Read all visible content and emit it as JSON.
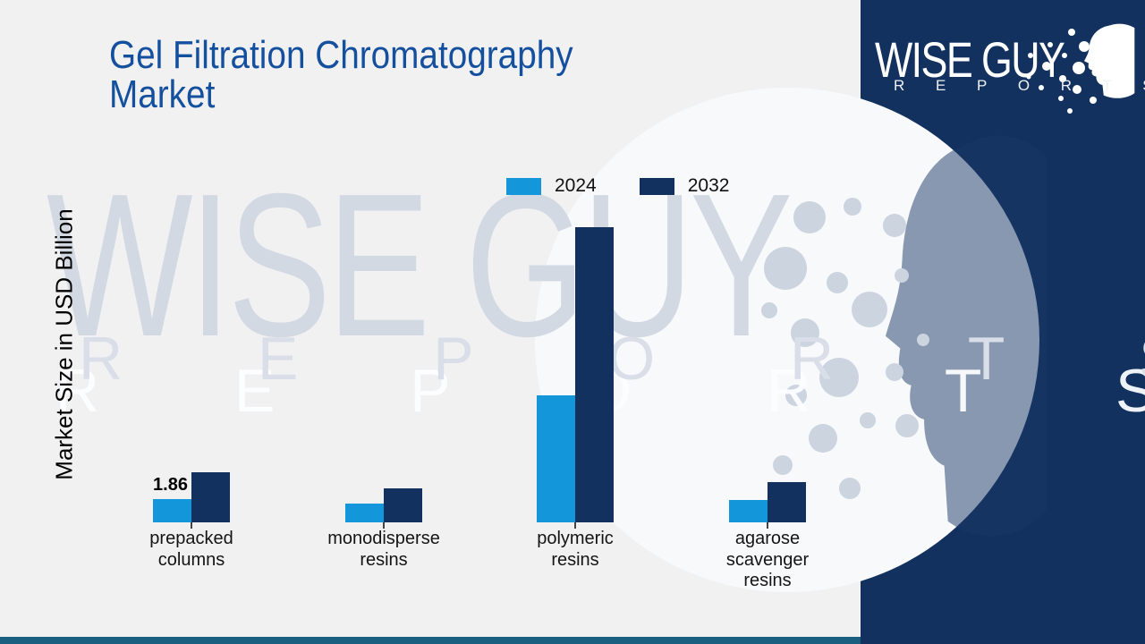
{
  "page": {
    "background": "#f1f1f2",
    "bottom_bar_color": "#1a5e80",
    "panel_color": "#12315f"
  },
  "title": {
    "text": "Gel Filtration Chromatography Market",
    "lines": [
      "Gel Filtration Chromatography",
      "Market"
    ],
    "color": "#15509e"
  },
  "y_axis_label": "Market Size in USD Billion",
  "brand": {
    "name": "WISE GUY",
    "sub": "R E P O R T S"
  },
  "watermark": {
    "line1": "WISE GUY",
    "line2": "R E P O R T S"
  },
  "legend": {
    "items": [
      {
        "label": "2024",
        "color": "#1496da"
      },
      {
        "label": "2032",
        "color": "#12315f"
      }
    ]
  },
  "chart_data": {
    "type": "bar",
    "title": "Gel Filtration Chromatography Market",
    "ylabel": "Market Size in USD Billion",
    "categories": [
      "prepacked columns",
      "monodisperse resins",
      "polymeric resins",
      "agarose scavenger resins"
    ],
    "category_label_lines": [
      [
        "prepacked",
        "columns"
      ],
      [
        "monodisperse",
        "resins"
      ],
      [
        "polymeric",
        "resins"
      ],
      [
        "agarose",
        "scavenger",
        "resins"
      ]
    ],
    "series": [
      {
        "name": "2024",
        "color": "#1496da",
        "values": [
          1.86,
          1.5,
          10.3,
          1.8
        ]
      },
      {
        "name": "2032",
        "color": "#12315f",
        "values": [
          4.1,
          2.8,
          24.0,
          3.3
        ]
      }
    ],
    "value_labels": [
      {
        "series_index": 0,
        "category_index": 0,
        "text": "1.86"
      }
    ],
    "ylim": [
      0,
      26
    ],
    "grid": false,
    "axis_ticks_visible": false,
    "legend_position": "top-center"
  }
}
